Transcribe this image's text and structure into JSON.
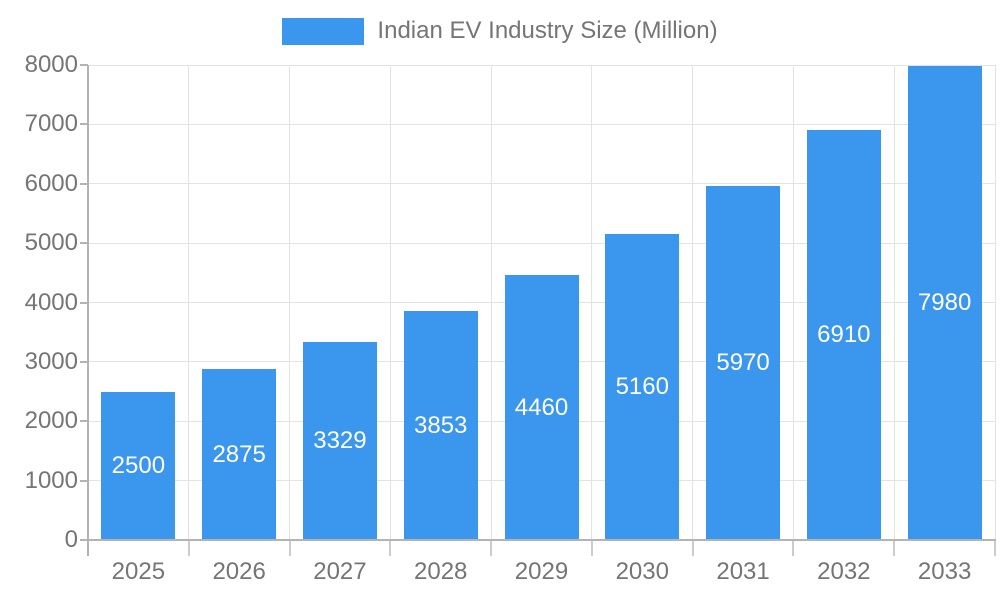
{
  "chart_data": {
    "type": "bar",
    "title": "Indian EV Industry Size (Million)",
    "categories": [
      "2025",
      "2026",
      "2027",
      "2028",
      "2029",
      "2030",
      "2031",
      "2032",
      "2033"
    ],
    "values": [
      2500,
      2875,
      3329,
      3853,
      4460,
      5160,
      5970,
      6910,
      7980
    ],
    "series_name": "Indian EV Industry Size (Million)",
    "xlabel": "",
    "ylabel": "",
    "ylim": [
      0,
      8000
    ],
    "ytick_step": 1000,
    "yticks": [
      0,
      1000,
      2000,
      3000,
      4000,
      5000,
      6000,
      7000,
      8000
    ],
    "grid": true,
    "value_labels": "inside-center",
    "legend_position": "top-center"
  },
  "colors": {
    "bar": "#3b96ee",
    "gridline": "#e3e3e3",
    "axis_line": "#b3b3b3",
    "minor_tick": "#cccccc",
    "axis_text": "#757575",
    "value_text": "#ffffff",
    "background": "#ffffff"
  }
}
